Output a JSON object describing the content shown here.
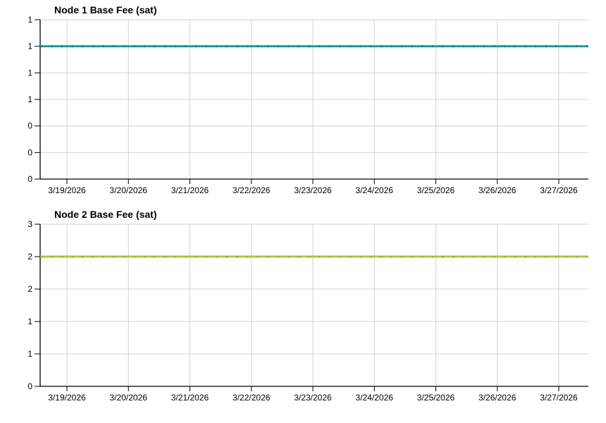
{
  "page": {
    "background": "#ffffff"
  },
  "chart_data": [
    {
      "type": "line",
      "title": "Node 1 Base Fee (sat)",
      "xlabel": "",
      "ylabel": "",
      "x_tick_labels": [
        "3/19/2026",
        "3/20/2026",
        "3/21/2026",
        "3/22/2026",
        "3/23/2026",
        "3/24/2026",
        "3/25/2026",
        "3/26/2026",
        "3/27/2026"
      ],
      "ylim": [
        0,
        1.2
      ],
      "y_ticks": [
        {
          "value": 0.0,
          "label": "0"
        },
        {
          "value": 0.2,
          "label": "0"
        },
        {
          "value": 0.4,
          "label": "0"
        },
        {
          "value": 0.6,
          "label": "1"
        },
        {
          "value": 0.8,
          "label": "1"
        },
        {
          "value": 1.0,
          "label": "1"
        },
        {
          "value": 1.2,
          "label": "1"
        }
      ],
      "grid": true,
      "legend": "none",
      "series": [
        {
          "name": "Node 1 Base Fee",
          "constant_value": 1,
          "color": "#1B9CA5",
          "marker_color": "#0F828C"
        }
      ]
    },
    {
      "type": "line",
      "title": "Node 2 Base Fee (sat)",
      "xlabel": "",
      "ylabel": "",
      "x_tick_labels": [
        "3/19/2026",
        "3/20/2026",
        "3/21/2026",
        "3/22/2026",
        "3/23/2026",
        "3/24/2026",
        "3/25/2026",
        "3/26/2026",
        "3/27/2026"
      ],
      "ylim": [
        0,
        2.5
      ],
      "y_ticks": [
        {
          "value": 0.0,
          "label": "0"
        },
        {
          "value": 0.5,
          "label": "1"
        },
        {
          "value": 1.0,
          "label": "1"
        },
        {
          "value": 1.5,
          "label": "2"
        },
        {
          "value": 2.0,
          "label": "2"
        },
        {
          "value": 2.5,
          "label": "3"
        }
      ],
      "grid": true,
      "legend": "none",
      "series": [
        {
          "name": "Node 2 Base Fee",
          "constant_value": 2,
          "color": "#A0CE3E",
          "marker_color": "#8ABA33"
        }
      ]
    }
  ],
  "style": {
    "grid_color": "#d3d3d3",
    "axis_color": "#000000",
    "tick_label_color": "#000000"
  }
}
